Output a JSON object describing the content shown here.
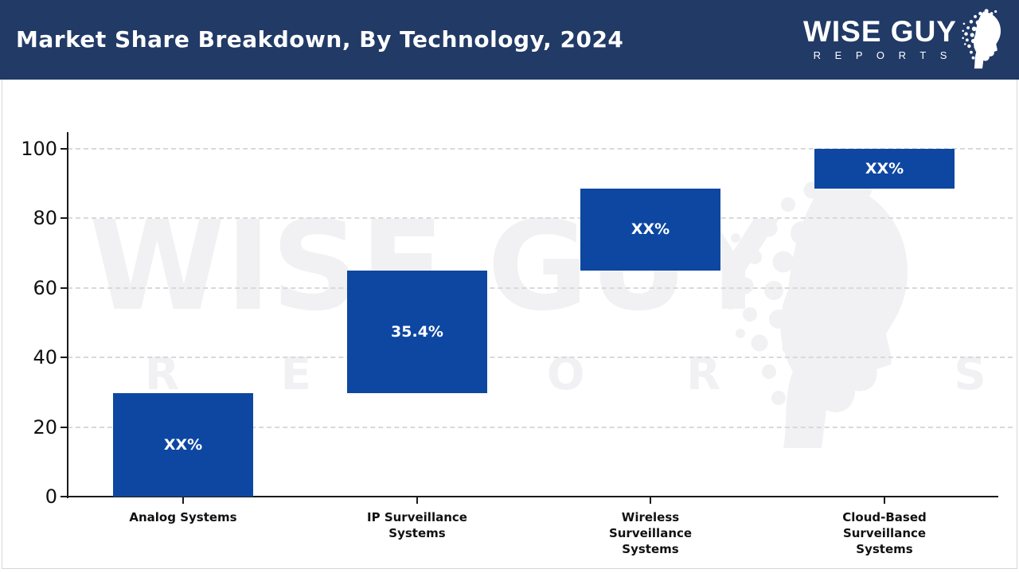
{
  "header": {
    "title": "Market Share Breakdown, By Technology, 2024",
    "logo": {
      "name": "WISE GUY",
      "tagline": "R E P O R T S"
    }
  },
  "watermark": {
    "text_primary": "WISE GUY",
    "text_secondary": "R E P O R T S"
  },
  "chart_data": {
    "type": "bar",
    "subtype": "waterfall",
    "title": "Market Share Breakdown, By Technology, 2024",
    "unit": "%",
    "ylim": [
      0,
      100
    ],
    "yticks": [
      0,
      20,
      40,
      60,
      80,
      100
    ],
    "grid": "horizontal-dashed",
    "legend": "none",
    "bar_color": "#0d47a1",
    "bar_label_color": "#ffffff",
    "categories": [
      "Analog Systems",
      "IP Surveillance\nSystems",
      "Wireless\nSurveillance\nSystems",
      "Cloud-Based\nSurveillance\nSystems"
    ],
    "segments": [
      {
        "category": "Analog Systems",
        "start": 0,
        "end": 29.7,
        "label": "XX%"
      },
      {
        "category": "IP Surveillance Systems",
        "start": 29.7,
        "end": 65.1,
        "value": 35.4,
        "label": "35.4%"
      },
      {
        "category": "Wireless Surveillance Systems",
        "start": 65.1,
        "end": 88.5,
        "label": "XX%"
      },
      {
        "category": "Cloud-Based Surveillance Systems",
        "start": 88.5,
        "end": 100,
        "label": "XX%"
      }
    ]
  }
}
